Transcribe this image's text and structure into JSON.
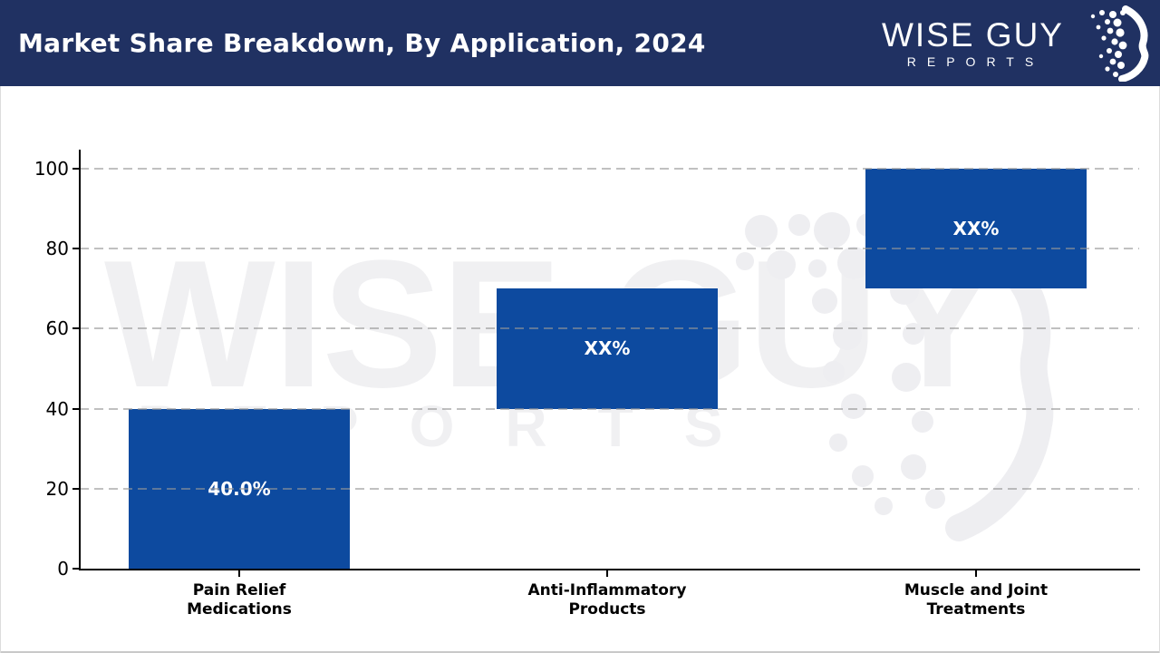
{
  "header": {
    "title": "Market Share Breakdown, By Application, 2024",
    "brand": {
      "name": "WISE GUY",
      "tagline": "REPORTS"
    }
  },
  "watermark": {
    "line1": "WISE GUY",
    "line2": "REPORTS"
  },
  "colors": {
    "header_bg": "#203162",
    "bar": "#0d4a9f",
    "axis": "#000000",
    "grid": "#c9c9c9",
    "watermark": "#f0f0f2"
  },
  "chart_data": {
    "type": "bar",
    "subtype": "stacked_waterfall",
    "title": "Market Share Breakdown, By Application, 2024",
    "categories": [
      "Pain Relief Medications",
      "Anti-Inflammatory Products",
      "Muscle and Joint Treatments"
    ],
    "category_label_lines": [
      [
        "Pain Relief",
        "Medications"
      ],
      [
        "Anti-Inflammatory",
        "Products"
      ],
      [
        "Muscle and Joint",
        "Treatments"
      ]
    ],
    "segments": [
      {
        "category": "Pain Relief Medications",
        "start": 0,
        "end": 40,
        "value": 40,
        "label": "40.0%"
      },
      {
        "category": "Anti-Inflammatory Products",
        "start": 40,
        "end": 70,
        "value": 30,
        "label": "XX%"
      },
      {
        "category": "Muscle and Joint Treatments",
        "start": 70,
        "end": 100,
        "value": 30,
        "label": "XX%"
      }
    ],
    "ylim": [
      0,
      100
    ],
    "yticks": [
      0,
      20,
      40,
      60,
      80,
      100
    ],
    "xlabel": "",
    "ylabel": "",
    "grid": "horizontal-dashed",
    "legend": "none"
  }
}
